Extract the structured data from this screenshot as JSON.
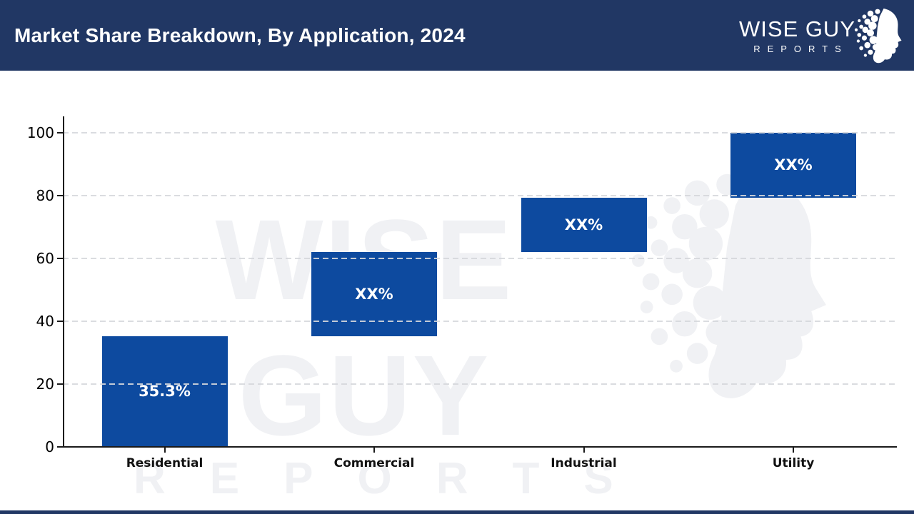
{
  "header": {
    "title": "Market Share Breakdown, By Application, 2024",
    "logo": {
      "line1": "WISE GUY",
      "line2": "REPORTS"
    }
  },
  "watermark": {
    "line1": "WISE GUY",
    "line2": "REPORTS"
  },
  "colors": {
    "header_bg": "#213764",
    "footer_bg": "#213764",
    "bar": "#0d4a9f",
    "bar_label": "#ffffff",
    "grid": "#d6d8dc",
    "axis": "#1a1a1a",
    "tick_label": "#000000",
    "watermark": "#f0f1f4"
  },
  "chart_data": {
    "type": "bar",
    "subtype": "waterfall",
    "title": "Market Share Breakdown, By Application, 2024",
    "xlabel": "",
    "ylabel": "",
    "categories": [
      "Residential",
      "Commercial",
      "Industrial",
      "Utility"
    ],
    "bars": [
      {
        "category": "Residential",
        "start": 0,
        "end": 35.3,
        "label": "35.3%"
      },
      {
        "category": "Commercial",
        "start": 35.3,
        "end": 62.1,
        "label": "XX%"
      },
      {
        "category": "Industrial",
        "start": 62.1,
        "end": 79.4,
        "label": "XX%"
      },
      {
        "category": "Utility",
        "start": 79.4,
        "end": 100,
        "label": "XX%"
      }
    ],
    "ylim": [
      0,
      100
    ],
    "yticks": [
      0,
      20,
      40,
      60,
      80,
      100
    ],
    "grid": "horizontal-dashed",
    "legend": "none"
  }
}
